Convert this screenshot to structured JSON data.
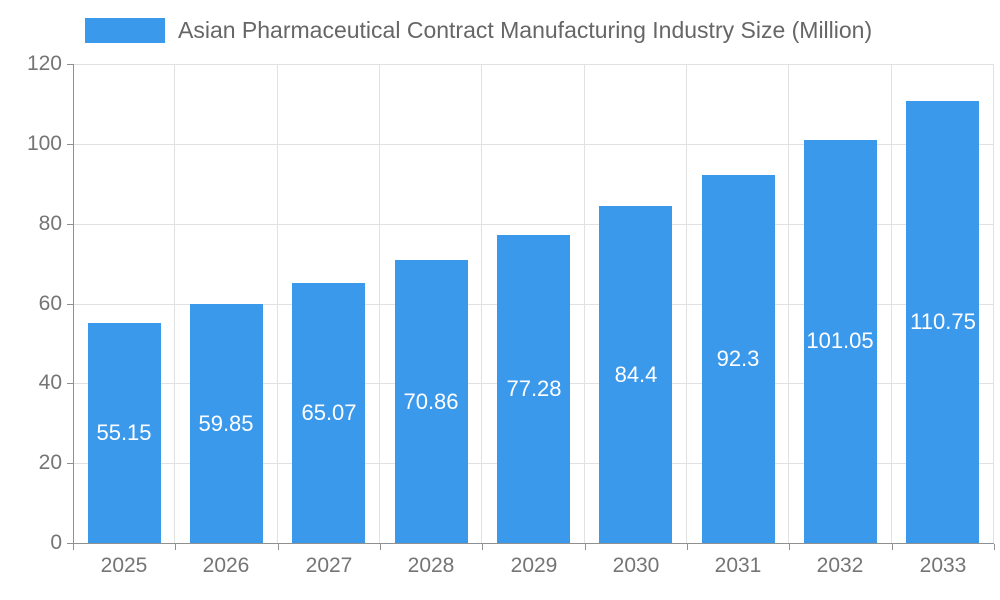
{
  "chart_data": {
    "type": "bar",
    "title": "Asian Pharmaceutical Contract Manufacturing Industry Size (Million)",
    "categories": [
      "2025",
      "2026",
      "2027",
      "2028",
      "2029",
      "2030",
      "2031",
      "2032",
      "2033"
    ],
    "series": [
      {
        "name": "Asian Pharmaceutical Contract Manufacturing Industry Size (Million)",
        "values": [
          55.15,
          59.85,
          65.07,
          70.86,
          77.28,
          84.4,
          92.3,
          101.05,
          110.75
        ],
        "value_labels": [
          "55.15",
          "59.85",
          "65.07",
          "70.86",
          "77.28",
          "84.4",
          "92.3",
          "101.05",
          "110.75"
        ]
      }
    ],
    "xlabel": "",
    "ylabel": "",
    "ylim": [
      0,
      120
    ],
    "yticks": [
      0,
      20,
      40,
      60,
      80,
      100,
      120
    ],
    "grid": true,
    "legend_position": "top-left",
    "value_labels_position": "inside-center",
    "colors": {
      "bar": "#3B99EC",
      "bar_value_label": "#FFFFFF",
      "legend_text": "#666666",
      "tick_label": "#757575",
      "axis_line": "#909090",
      "gridline": "#E1E1E1",
      "background": "#FFFFFF"
    }
  }
}
